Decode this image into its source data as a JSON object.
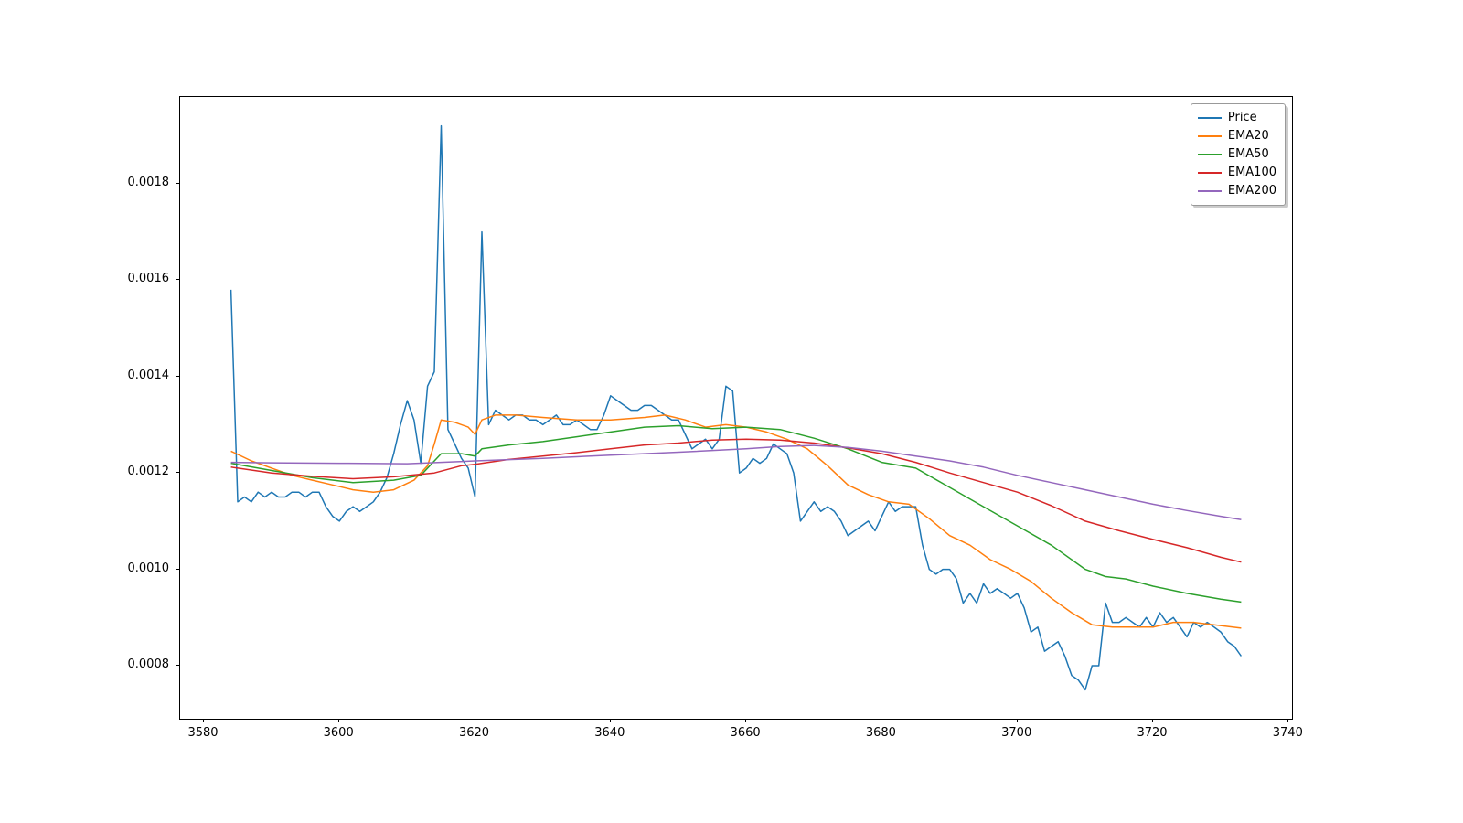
{
  "figure": {
    "background": "#ffffff",
    "frame_color": "#000000"
  },
  "chart_data": {
    "type": "line",
    "title": "",
    "xlabel": "",
    "ylabel": "",
    "grid": false,
    "xlim": [
      3576.5,
      3740.5
    ],
    "ylim": [
      0.00069,
      0.00198
    ],
    "x_ticks": [
      3580,
      3600,
      3620,
      3640,
      3660,
      3680,
      3700,
      3720,
      3740
    ],
    "y_ticks": [
      0.0008,
      0.001,
      0.0012,
      0.0014,
      0.0016,
      0.0018
    ],
    "legend": {
      "position": "upper right",
      "entries": [
        "Price",
        "EMA20",
        "EMA50",
        "EMA100",
        "EMA200"
      ]
    },
    "series": [
      {
        "name": "Price",
        "color": "#1f77b4",
        "x_start": 3584,
        "x_step": 1,
        "y": [
          0.00158,
          0.00114,
          0.00115,
          0.00114,
          0.00116,
          0.00115,
          0.00116,
          0.00115,
          0.00115,
          0.00116,
          0.00116,
          0.00115,
          0.00116,
          0.00116,
          0.00113,
          0.00111,
          0.0011,
          0.00112,
          0.00113,
          0.00112,
          0.00113,
          0.00114,
          0.00116,
          0.00119,
          0.00124,
          0.0013,
          0.00135,
          0.00131,
          0.00122,
          0.00138,
          0.00141,
          0.00192,
          0.00129,
          0.00126,
          0.00123,
          0.00121,
          0.00115,
          0.0017,
          0.0013,
          0.00133,
          0.00132,
          0.00131,
          0.00132,
          0.00132,
          0.00131,
          0.00131,
          0.0013,
          0.00131,
          0.00132,
          0.0013,
          0.0013,
          0.00131,
          0.0013,
          0.00129,
          0.00129,
          0.00132,
          0.00136,
          0.00135,
          0.00134,
          0.00133,
          0.00133,
          0.00134,
          0.00134,
          0.00133,
          0.00132,
          0.00131,
          0.00131,
          0.00128,
          0.00125,
          0.00126,
          0.00127,
          0.00125,
          0.00127,
          0.00138,
          0.00137,
          0.0012,
          0.00121,
          0.00123,
          0.00122,
          0.00123,
          0.00126,
          0.00125,
          0.00124,
          0.0012,
          0.0011,
          0.00112,
          0.00114,
          0.00112,
          0.00113,
          0.00112,
          0.0011,
          0.00107,
          0.00108,
          0.00109,
          0.0011,
          0.00108,
          0.00111,
          0.00114,
          0.00112,
          0.00113,
          0.00113,
          0.00113,
          0.00105,
          0.001,
          0.00099,
          0.001,
          0.001,
          0.00098,
          0.00093,
          0.00095,
          0.00093,
          0.00097,
          0.00095,
          0.00096,
          0.00095,
          0.00094,
          0.00095,
          0.00092,
          0.00087,
          0.00088,
          0.00083,
          0.00084,
          0.00085,
          0.00082,
          0.00078,
          0.00077,
          0.00075,
          0.0008,
          0.0008,
          0.00093,
          0.00089,
          0.00089,
          0.0009,
          0.00089,
          0.00088,
          0.0009,
          0.00088,
          0.00091,
          0.00089,
          0.0009,
          0.00088,
          0.00086,
          0.00089,
          0.00088,
          0.00089,
          0.00088,
          0.00087,
          0.00085,
          0.00084,
          0.00082
        ]
      },
      {
        "name": "EMA20",
        "color": "#ff7f0e",
        "x": [
          3584,
          3587,
          3590,
          3593,
          3596,
          3599,
          3602,
          3605,
          3608,
          3611,
          3613,
          3614,
          3615,
          3617,
          3619,
          3620,
          3621,
          3623,
          3626,
          3630,
          3635,
          3640,
          3645,
          3648,
          3651,
          3654,
          3657,
          3660,
          3663,
          3666,
          3669,
          3672,
          3675,
          3678,
          3681,
          3684,
          3687,
          3690,
          3693,
          3696,
          3699,
          3702,
          3705,
          3708,
          3711,
          3714,
          3717,
          3720,
          3723,
          3726,
          3729,
          3733
        ],
        "y": [
          0.001245,
          0.001225,
          0.00121,
          0.001195,
          0.001185,
          0.001175,
          0.001165,
          0.00116,
          0.001165,
          0.001185,
          0.001215,
          0.00126,
          0.00131,
          0.001305,
          0.001295,
          0.00128,
          0.00131,
          0.00132,
          0.00132,
          0.001315,
          0.00131,
          0.00131,
          0.001315,
          0.00132,
          0.00131,
          0.001295,
          0.0013,
          0.001295,
          0.001285,
          0.00127,
          0.00125,
          0.001215,
          0.001175,
          0.001155,
          0.00114,
          0.001135,
          0.001105,
          0.00107,
          0.00105,
          0.00102,
          0.001,
          0.000975,
          0.00094,
          0.00091,
          0.000885,
          0.00088,
          0.00088,
          0.00088,
          0.00089,
          0.00089,
          0.000885,
          0.000878
        ]
      },
      {
        "name": "EMA50",
        "color": "#2ca02c",
        "x": [
          3584,
          3590,
          3596,
          3602,
          3608,
          3612,
          3615,
          3618,
          3620,
          3621,
          3625,
          3630,
          3635,
          3640,
          3645,
          3650,
          3655,
          3660,
          3665,
          3670,
          3675,
          3680,
          3685,
          3690,
          3695,
          3700,
          3705,
          3710,
          3713,
          3716,
          3720,
          3725,
          3730,
          3733
        ],
        "y": [
          0.00122,
          0.001205,
          0.00119,
          0.00118,
          0.001185,
          0.001195,
          0.00124,
          0.00124,
          0.001235,
          0.00125,
          0.001258,
          0.001265,
          0.001275,
          0.001285,
          0.001295,
          0.001298,
          0.001292,
          0.001295,
          0.00129,
          0.001272,
          0.00125,
          0.001222,
          0.00121,
          0.00117,
          0.00113,
          0.00109,
          0.00105,
          0.001,
          0.000985,
          0.00098,
          0.000965,
          0.00095,
          0.000938,
          0.000932
        ]
      },
      {
        "name": "EMA100",
        "color": "#d62728",
        "x": [
          3584,
          3590,
          3596,
          3602,
          3608,
          3614,
          3618,
          3620,
          3625,
          3630,
          3635,
          3640,
          3645,
          3650,
          3655,
          3660,
          3665,
          3670,
          3675,
          3680,
          3685,
          3690,
          3695,
          3700,
          3705,
          3710,
          3715,
          3720,
          3725,
          3730,
          3733
        ],
        "y": [
          0.001212,
          0.0012,
          0.001193,
          0.001188,
          0.001192,
          0.0012,
          0.001215,
          0.001218,
          0.001228,
          0.001235,
          0.001242,
          0.00125,
          0.001258,
          0.001262,
          0.001268,
          0.00127,
          0.001268,
          0.001262,
          0.001252,
          0.00124,
          0.001222,
          0.0012,
          0.00118,
          0.00116,
          0.001132,
          0.0011,
          0.00108,
          0.001062,
          0.001045,
          0.001025,
          0.001015
        ]
      },
      {
        "name": "EMA200",
        "color": "#9467bd",
        "x": [
          3584,
          3590,
          3600,
          3610,
          3620,
          3630,
          3640,
          3650,
          3660,
          3665,
          3670,
          3675,
          3680,
          3685,
          3690,
          3695,
          3700,
          3705,
          3710,
          3715,
          3720,
          3725,
          3730,
          3733
        ],
        "y": [
          0.001222,
          0.001221,
          0.00122,
          0.001219,
          0.001225,
          0.00123,
          0.001237,
          0.001243,
          0.00125,
          0.001255,
          0.001257,
          0.001253,
          0.001245,
          0.001235,
          0.001225,
          0.001212,
          0.001195,
          0.00118,
          0.001165,
          0.00115,
          0.001135,
          0.001122,
          0.00111,
          0.001103
        ]
      }
    ]
  }
}
